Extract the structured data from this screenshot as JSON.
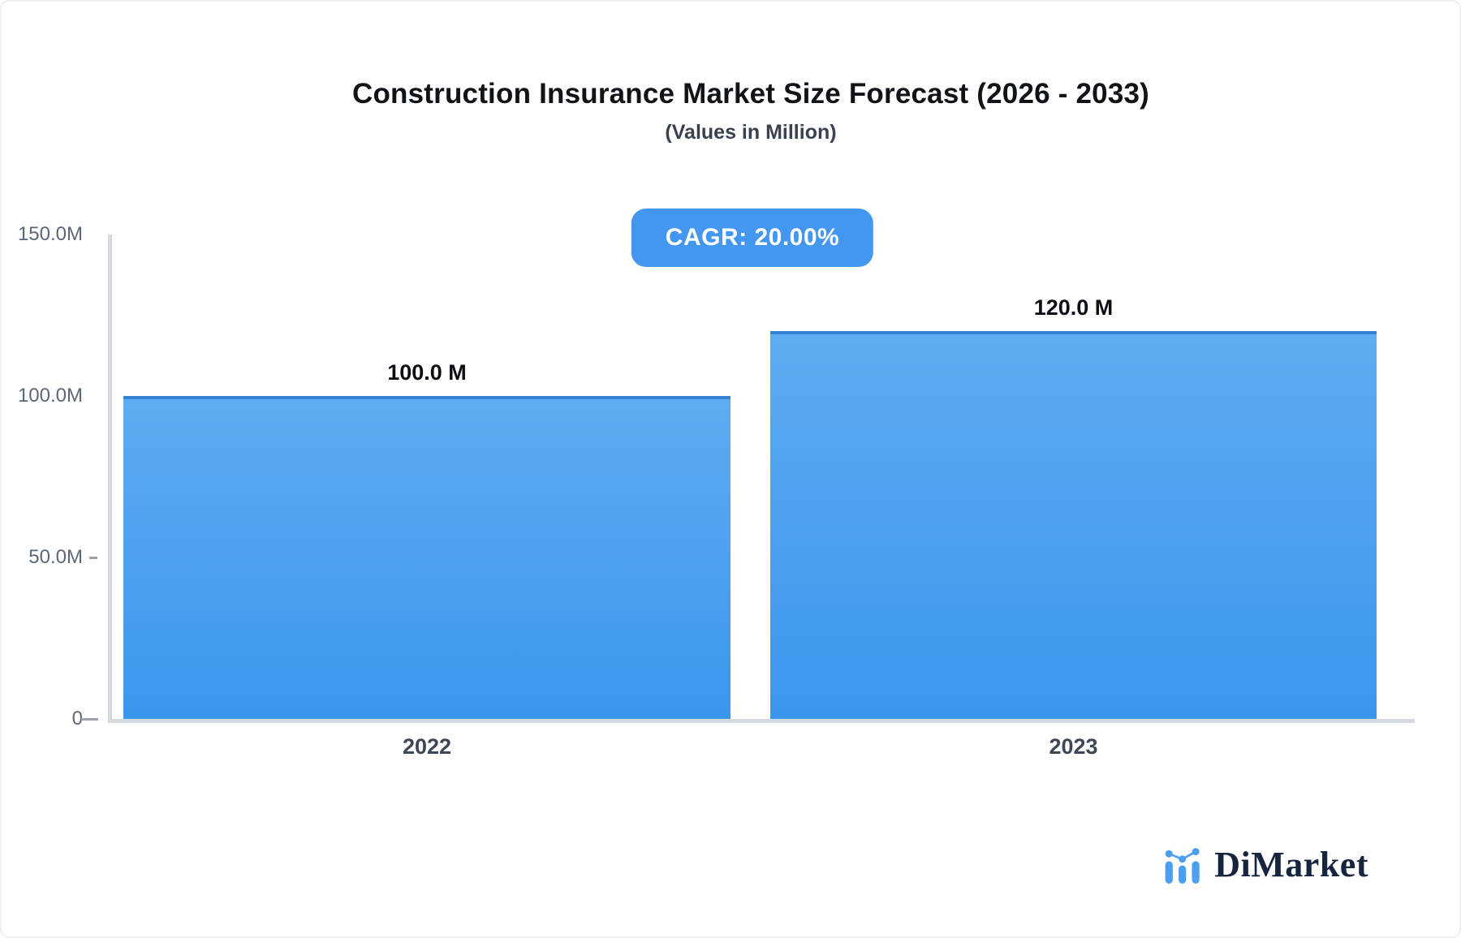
{
  "chart_data": {
    "type": "bar",
    "title": "Construction Insurance Market Size Forecast (2026 - 2033)",
    "subtitle": "(Values in Million)",
    "cagr_badge": "CAGR: 20.00%",
    "categories": [
      "2022",
      "2023"
    ],
    "values": [
      100.0,
      120.0
    ],
    "value_labels": [
      "100.0 M",
      "120.0 M"
    ],
    "xlabel": "",
    "ylabel": "",
    "ylim": [
      0,
      150
    ],
    "y_ticks": [
      {
        "label": "150.0M",
        "value": 150,
        "dash": "none"
      },
      {
        "label": "100.0M",
        "value": 100,
        "dash": "none"
      },
      {
        "label": "50.0M",
        "value": 50,
        "dash": "short"
      },
      {
        "label": "0",
        "value": 0,
        "dash": "long"
      }
    ],
    "grid": false,
    "legend": false,
    "bar_colors": {
      "top": "#5EACF1",
      "bottom": "#3B96EE",
      "edge": "#3583D2"
    },
    "accent_color": "#4497F0"
  },
  "branding": {
    "logo_text": "DiMarket",
    "logo_icon": "bar-chart-icon",
    "logo_text_color": "#16243E",
    "logo_icon_color": "#4A9FF0"
  }
}
